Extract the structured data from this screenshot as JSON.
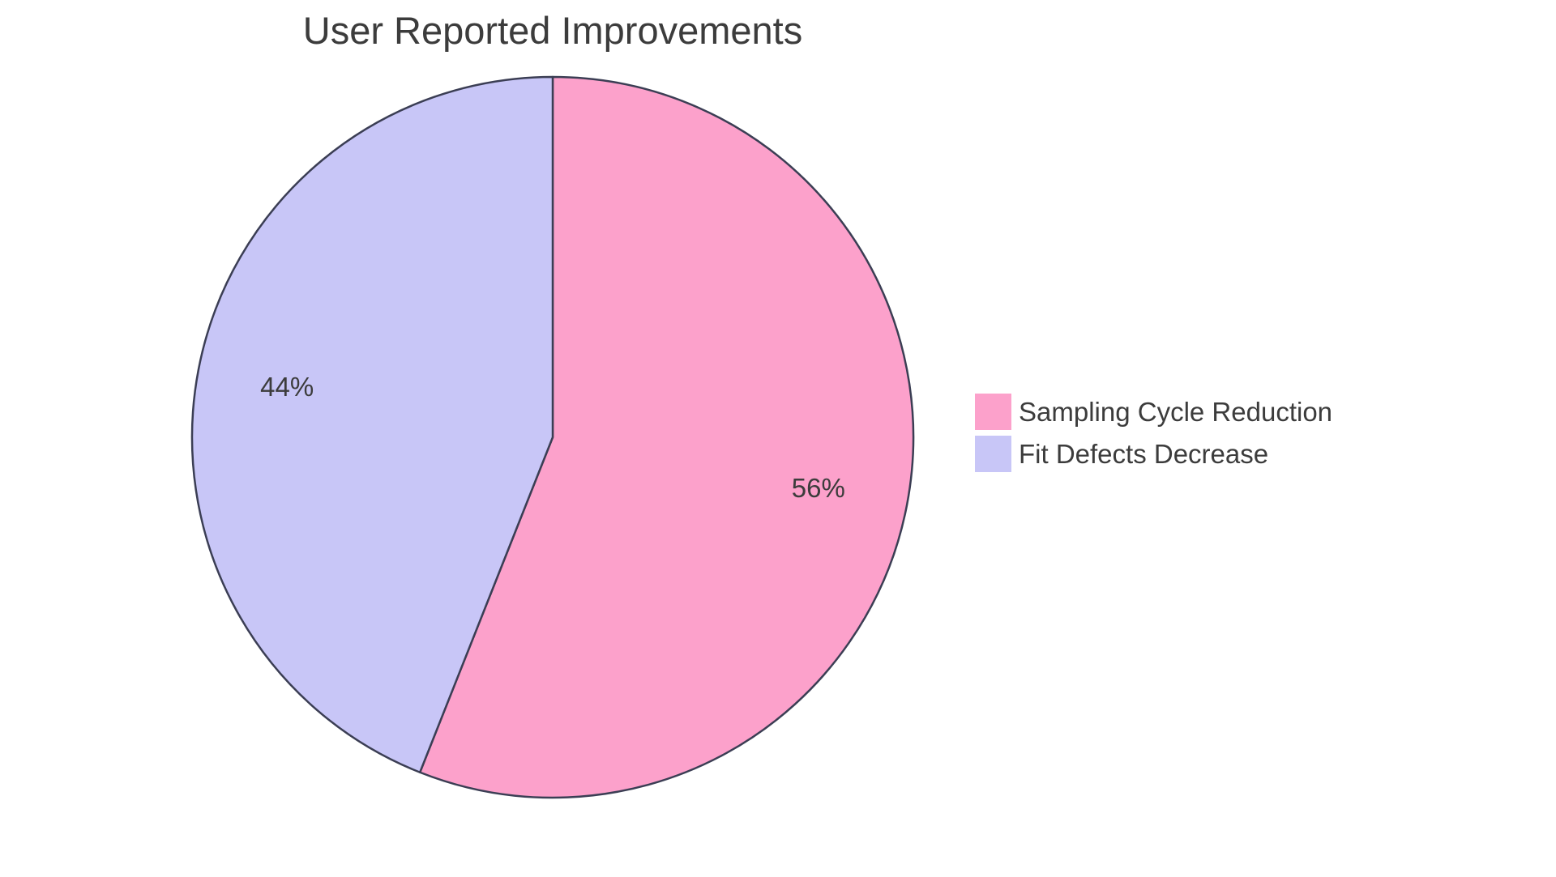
{
  "chart_data": {
    "type": "pie",
    "title": "User Reported Improvements",
    "labels": [
      "Sampling Cycle Reduction",
      "Fit Defects Decrease"
    ],
    "values": [
      56,
      44
    ],
    "percent_labels": [
      "56%",
      "44%"
    ],
    "colors": [
      "#FCA1CB",
      "#C8C6F7"
    ],
    "slice_border_color": "#3B3E54",
    "text_color": "#3C3C3C",
    "background": "#FFFFFF",
    "legend_position": "right",
    "start_angle_deg": 0,
    "direction": "clockwise"
  }
}
